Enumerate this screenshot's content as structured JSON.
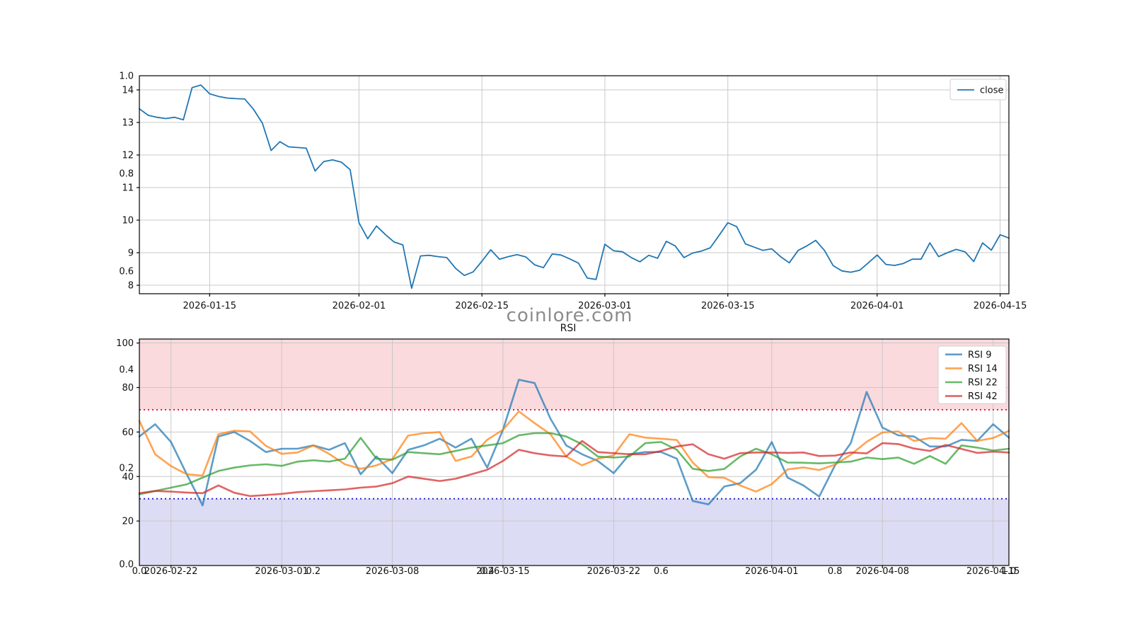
{
  "figure": {
    "watermark": "coinlore.com",
    "background_color": "#ffffff",
    "grid_color": "#c8c8c8",
    "spine_color": "#000000",
    "tick_text_color": "#111111"
  },
  "chart_data": [
    {
      "id": "price",
      "type": "line",
      "title": "",
      "xlabel": "",
      "ylabel": "",
      "start_date": "2026-01-07",
      "end_date": "2026-04-16",
      "ylim": [
        7.74,
        14.435
      ],
      "yticks": [
        14,
        13,
        12,
        11,
        10,
        9,
        8
      ],
      "twin_y_labels": [
        "1.0",
        "0.8",
        "0.6"
      ],
      "x_ticks": [
        {
          "label": "2026-01-15",
          "day": 8
        },
        {
          "label": "2026-02-01",
          "day": 25
        },
        {
          "label": "2026-02-15",
          "day": 39
        },
        {
          "label": "2026-03-01",
          "day": 53
        },
        {
          "label": "2026-03-15",
          "day": 67
        },
        {
          "label": "2026-04-01",
          "day": 84
        },
        {
          "label": "2026-04-15",
          "day": 98
        }
      ],
      "legend_position": "upper right",
      "grid": true,
      "series": [
        {
          "name": "close",
          "color": "#1f77b4",
          "line_width": 1.8,
          "values": [
            13.42,
            13.22,
            13.16,
            13.12,
            13.16,
            13.08,
            14.07,
            14.15,
            13.88,
            13.8,
            13.75,
            13.73,
            13.72,
            13.4,
            12.98,
            12.14,
            12.41,
            12.25,
            12.23,
            12.21,
            11.51,
            11.8,
            11.85,
            11.78,
            11.55,
            9.92,
            9.43,
            9.82,
            9.56,
            9.33,
            9.24,
            7.91,
            8.9,
            8.92,
            8.88,
            8.85,
            8.52,
            8.3,
            8.41,
            8.74,
            9.09,
            8.8,
            8.88,
            8.94,
            8.87,
            8.63,
            8.54,
            8.96,
            8.93,
            8.81,
            8.68,
            8.22,
            8.18,
            9.26,
            9.06,
            9.03,
            8.85,
            8.72,
            8.92,
            8.83,
            9.35,
            9.21,
            8.85,
            8.99,
            9.05,
            9.15,
            9.53,
            9.92,
            9.8,
            9.27,
            9.17,
            9.07,
            9.12,
            8.88,
            8.69,
            9.07,
            9.21,
            9.38,
            9.07,
            8.6,
            8.44,
            8.4,
            8.46,
            8.69,
            8.93,
            8.64,
            8.61,
            8.67,
            8.8,
            8.8,
            9.3,
            8.88,
            9.0,
            9.1,
            9.03,
            8.73,
            9.3,
            9.08,
            9.55,
            9.45
          ]
        }
      ]
    },
    {
      "id": "rsi",
      "type": "line",
      "title": "RSI",
      "xlabel": "",
      "ylabel": "",
      "start_date": "2026-02-20",
      "end_date": "2026-04-16",
      "ylim": [
        0,
        101.8
      ],
      "yticks": [
        100,
        80,
        60,
        40,
        20
      ],
      "twin_y_labels": [
        "0.4",
        "0.2",
        "0.0"
      ],
      "twin_x_labels": [
        "0.0",
        "0.2",
        "0.4",
        "0.6",
        "0.8",
        "1.0"
      ],
      "x_ticks": [
        {
          "label": "2026-02-22",
          "day": 2
        },
        {
          "label": "2026-03-01",
          "day": 9
        },
        {
          "label": "2026-03-08",
          "day": 16
        },
        {
          "label": "2026-03-15",
          "day": 23
        },
        {
          "label": "2026-03-22",
          "day": 30
        },
        {
          "label": "2026-04-01",
          "day": 40
        },
        {
          "label": "2026-04-08",
          "day": 47
        },
        {
          "label": "2026-04-15",
          "day": 54
        }
      ],
      "overbought_level": 70,
      "oversold_level": 30,
      "overbought_band_color": "#fadadd",
      "oversold_band_color": "#dcdcf4",
      "overbought_line_color": "#dc143c",
      "oversold_line_color": "#1717cd",
      "legend_position": "upper right",
      "grid": true,
      "series": [
        {
          "name": "RSI 9",
          "color": "rgba(31,119,180,0.72)",
          "line_width": 2.6,
          "values": [
            58,
            63.5,
            55.5,
            41,
            27,
            58,
            60,
            56,
            51,
            52.5,
            52.5,
            54,
            52,
            55,
            41,
            49,
            41.5,
            52,
            54,
            57,
            53,
            57,
            44,
            61,
            83.5,
            82,
            66,
            54,
            50,
            47,
            41.5,
            50,
            51,
            51,
            48,
            29,
            27.5,
            35.5,
            37,
            43,
            55.5,
            39.5,
            36,
            31,
            45,
            55,
            78,
            62,
            58.5,
            58,
            53.5,
            53.5,
            56.5,
            56,
            63.5,
            57.5
          ]
        },
        {
          "name": "RSI 14",
          "color": "rgba(255,127,14,0.72)",
          "line_width": 2.6,
          "values": [
            65,
            50,
            44.7,
            41,
            40.4,
            59,
            60.6,
            60.3,
            53.8,
            50.2,
            50.8,
            54,
            50.2,
            45.5,
            43.5,
            45,
            47.8,
            58.4,
            59.5,
            60,
            47,
            49,
            56.5,
            61,
            69.3,
            64,
            59,
            49,
            45,
            48,
            49.5,
            59,
            57.5,
            57,
            56.4,
            46.3,
            39.7,
            39.4,
            36,
            33.2,
            36.6,
            43.2,
            44.1,
            42.9,
            45.4,
            49.8,
            55.6,
            59.8,
            60.3,
            56,
            57.3,
            57,
            64,
            56,
            57.3,
            60.5
          ]
        },
        {
          "name": "RSI 22",
          "color": "rgba(44,160,44,0.72)",
          "line_width": 2.6,
          "values": [
            32,
            33.5,
            35,
            36.5,
            39.5,
            42.5,
            44,
            45,
            45.5,
            44.8,
            46.7,
            47.3,
            46.7,
            48,
            57.4,
            48,
            47.6,
            51,
            50.5,
            50,
            51.5,
            53,
            54,
            55,
            58.5,
            59.5,
            59.5,
            58,
            54.5,
            49,
            48.5,
            49,
            55,
            55.5,
            52,
            43.5,
            42.5,
            43.4,
            49,
            52.5,
            50,
            46.3,
            46.2,
            45.9,
            46.3,
            46.7,
            48.5,
            47.8,
            48.5,
            45.7,
            49.2,
            45.7,
            54,
            53,
            51.7,
            52.5
          ]
        },
        {
          "name": "RSI 42",
          "color": "rgba(214,39,40,0.72)",
          "line_width": 2.6,
          "values": [
            32.5,
            33.5,
            33.2,
            32.8,
            32.5,
            36,
            32.7,
            31.2,
            31.7,
            32.2,
            33,
            33.4,
            33.8,
            34.2,
            35,
            35.5,
            37,
            40,
            39,
            38,
            39,
            41,
            43,
            47,
            52,
            50.5,
            49.5,
            49,
            56,
            51,
            50.5,
            50,
            50,
            51.5,
            53.5,
            54.5,
            50,
            48,
            50.5,
            50.8,
            50.8,
            50.6,
            50.8,
            49.2,
            49.4,
            50.8,
            50.4,
            55,
            54.6,
            52.6,
            51.5,
            54.2,
            52.4,
            50.6,
            51.2,
            50.8
          ]
        }
      ]
    }
  ]
}
